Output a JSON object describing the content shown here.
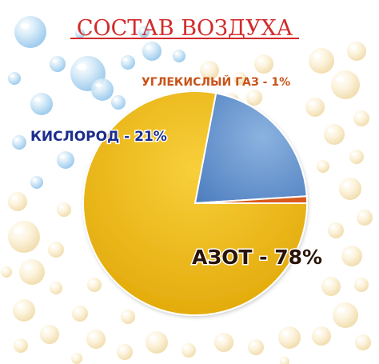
{
  "chart_data": {
    "type": "pie",
    "title": "СОСТАВ ВОЗДУХА",
    "slices": [
      {
        "label": "АЗОТ - 78%",
        "value": 78,
        "color": "#f0b90c"
      },
      {
        "label": "КИСЛОРОД - 21%",
        "value": 21,
        "color": "#6d99cf"
      },
      {
        "label": "УГЛЕКИСЛЫЙ ГАЗ - 1%",
        "value": 1,
        "color": "#d95a1e"
      }
    ],
    "background": "soap-bubbles"
  }
}
